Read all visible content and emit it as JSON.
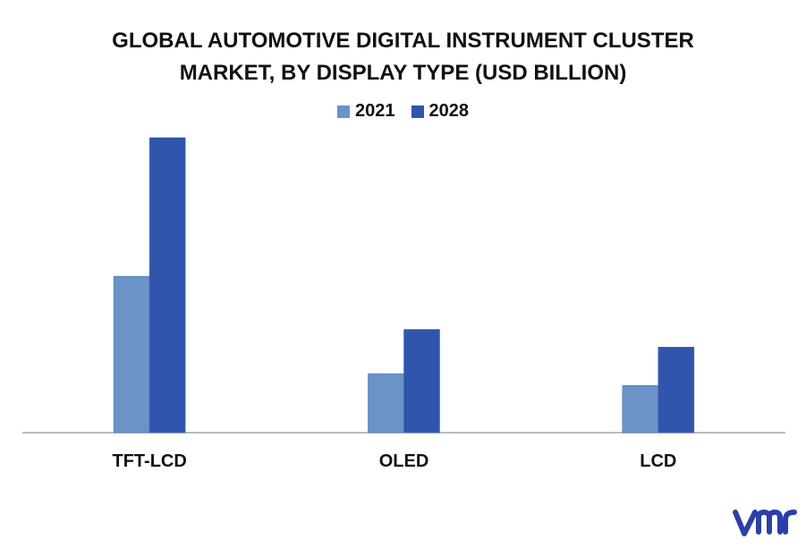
{
  "chart_data": {
    "type": "bar",
    "title_lines": [
      "GLOBAL AUTOMOTIVE DIGITAL INSTRUMENT CLUSTER",
      "MARKET, BY DISPLAY TYPE (USD BILLION)"
    ],
    "categories": [
      "TFT-LCD",
      "OLED",
      "LCD"
    ],
    "series": [
      {
        "name": "2021",
        "color": "#6b93c7",
        "values": [
          5.3,
          2.0,
          1.6
        ]
      },
      {
        "name": "2028",
        "color": "#2f55ad",
        "values": [
          10.0,
          3.5,
          2.9
        ]
      }
    ],
    "ylim": [
      0,
      10.0
    ],
    "grid": false,
    "legend_position": "top-center",
    "axis_color": "#a6a6a6"
  },
  "logo": {
    "icon": "vmr-logo-icon",
    "color": "#2b3fa8"
  }
}
